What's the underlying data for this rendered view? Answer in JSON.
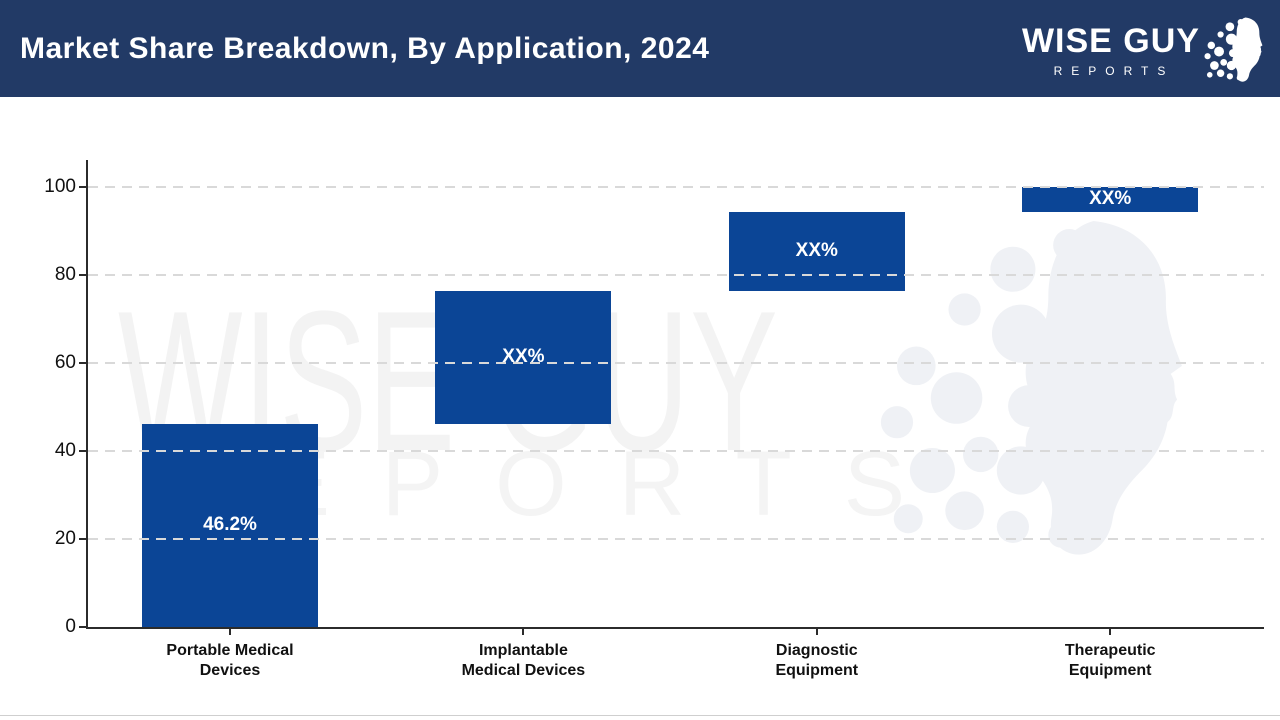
{
  "header": {
    "title": "Market Share Breakdown, By Application, 2024",
    "bg_color": "#223a66",
    "logo": {
      "line1": "WISE GUY",
      "line2": "REPORTS"
    }
  },
  "watermark": {
    "line1": "WISE GUY",
    "line2": "REPORTS"
  },
  "chart_data": {
    "type": "bar",
    "subtype": "waterfall",
    "title": "Market Share Breakdown, By Application, 2024",
    "categories": [
      [
        "Portable Medical",
        "Devices"
      ],
      [
        "Implantable",
        "Medical Devices"
      ],
      [
        "Diagnostic",
        "Equipment"
      ],
      [
        "Therapeutic",
        "Equipment"
      ]
    ],
    "segments": [
      {
        "start": 0,
        "end": 46.2,
        "label": "46.2%"
      },
      {
        "start": 46.2,
        "end": 76.4,
        "label": "XX%"
      },
      {
        "start": 76.4,
        "end": 94.4,
        "label": "XX%"
      },
      {
        "start": 94.4,
        "end": 100,
        "label": "XX%"
      }
    ],
    "ylim": [
      0,
      100
    ],
    "yticks": [
      0,
      20,
      40,
      60,
      80,
      100
    ],
    "xlabel": "",
    "ylabel": "",
    "bar_color": "#0b4596",
    "bar_label_color": "#ffffff",
    "grid": {
      "visible": true,
      "style": "dashed",
      "color": "#d9d9d9",
      "drawn_above_bars": true
    },
    "legend": "none"
  }
}
